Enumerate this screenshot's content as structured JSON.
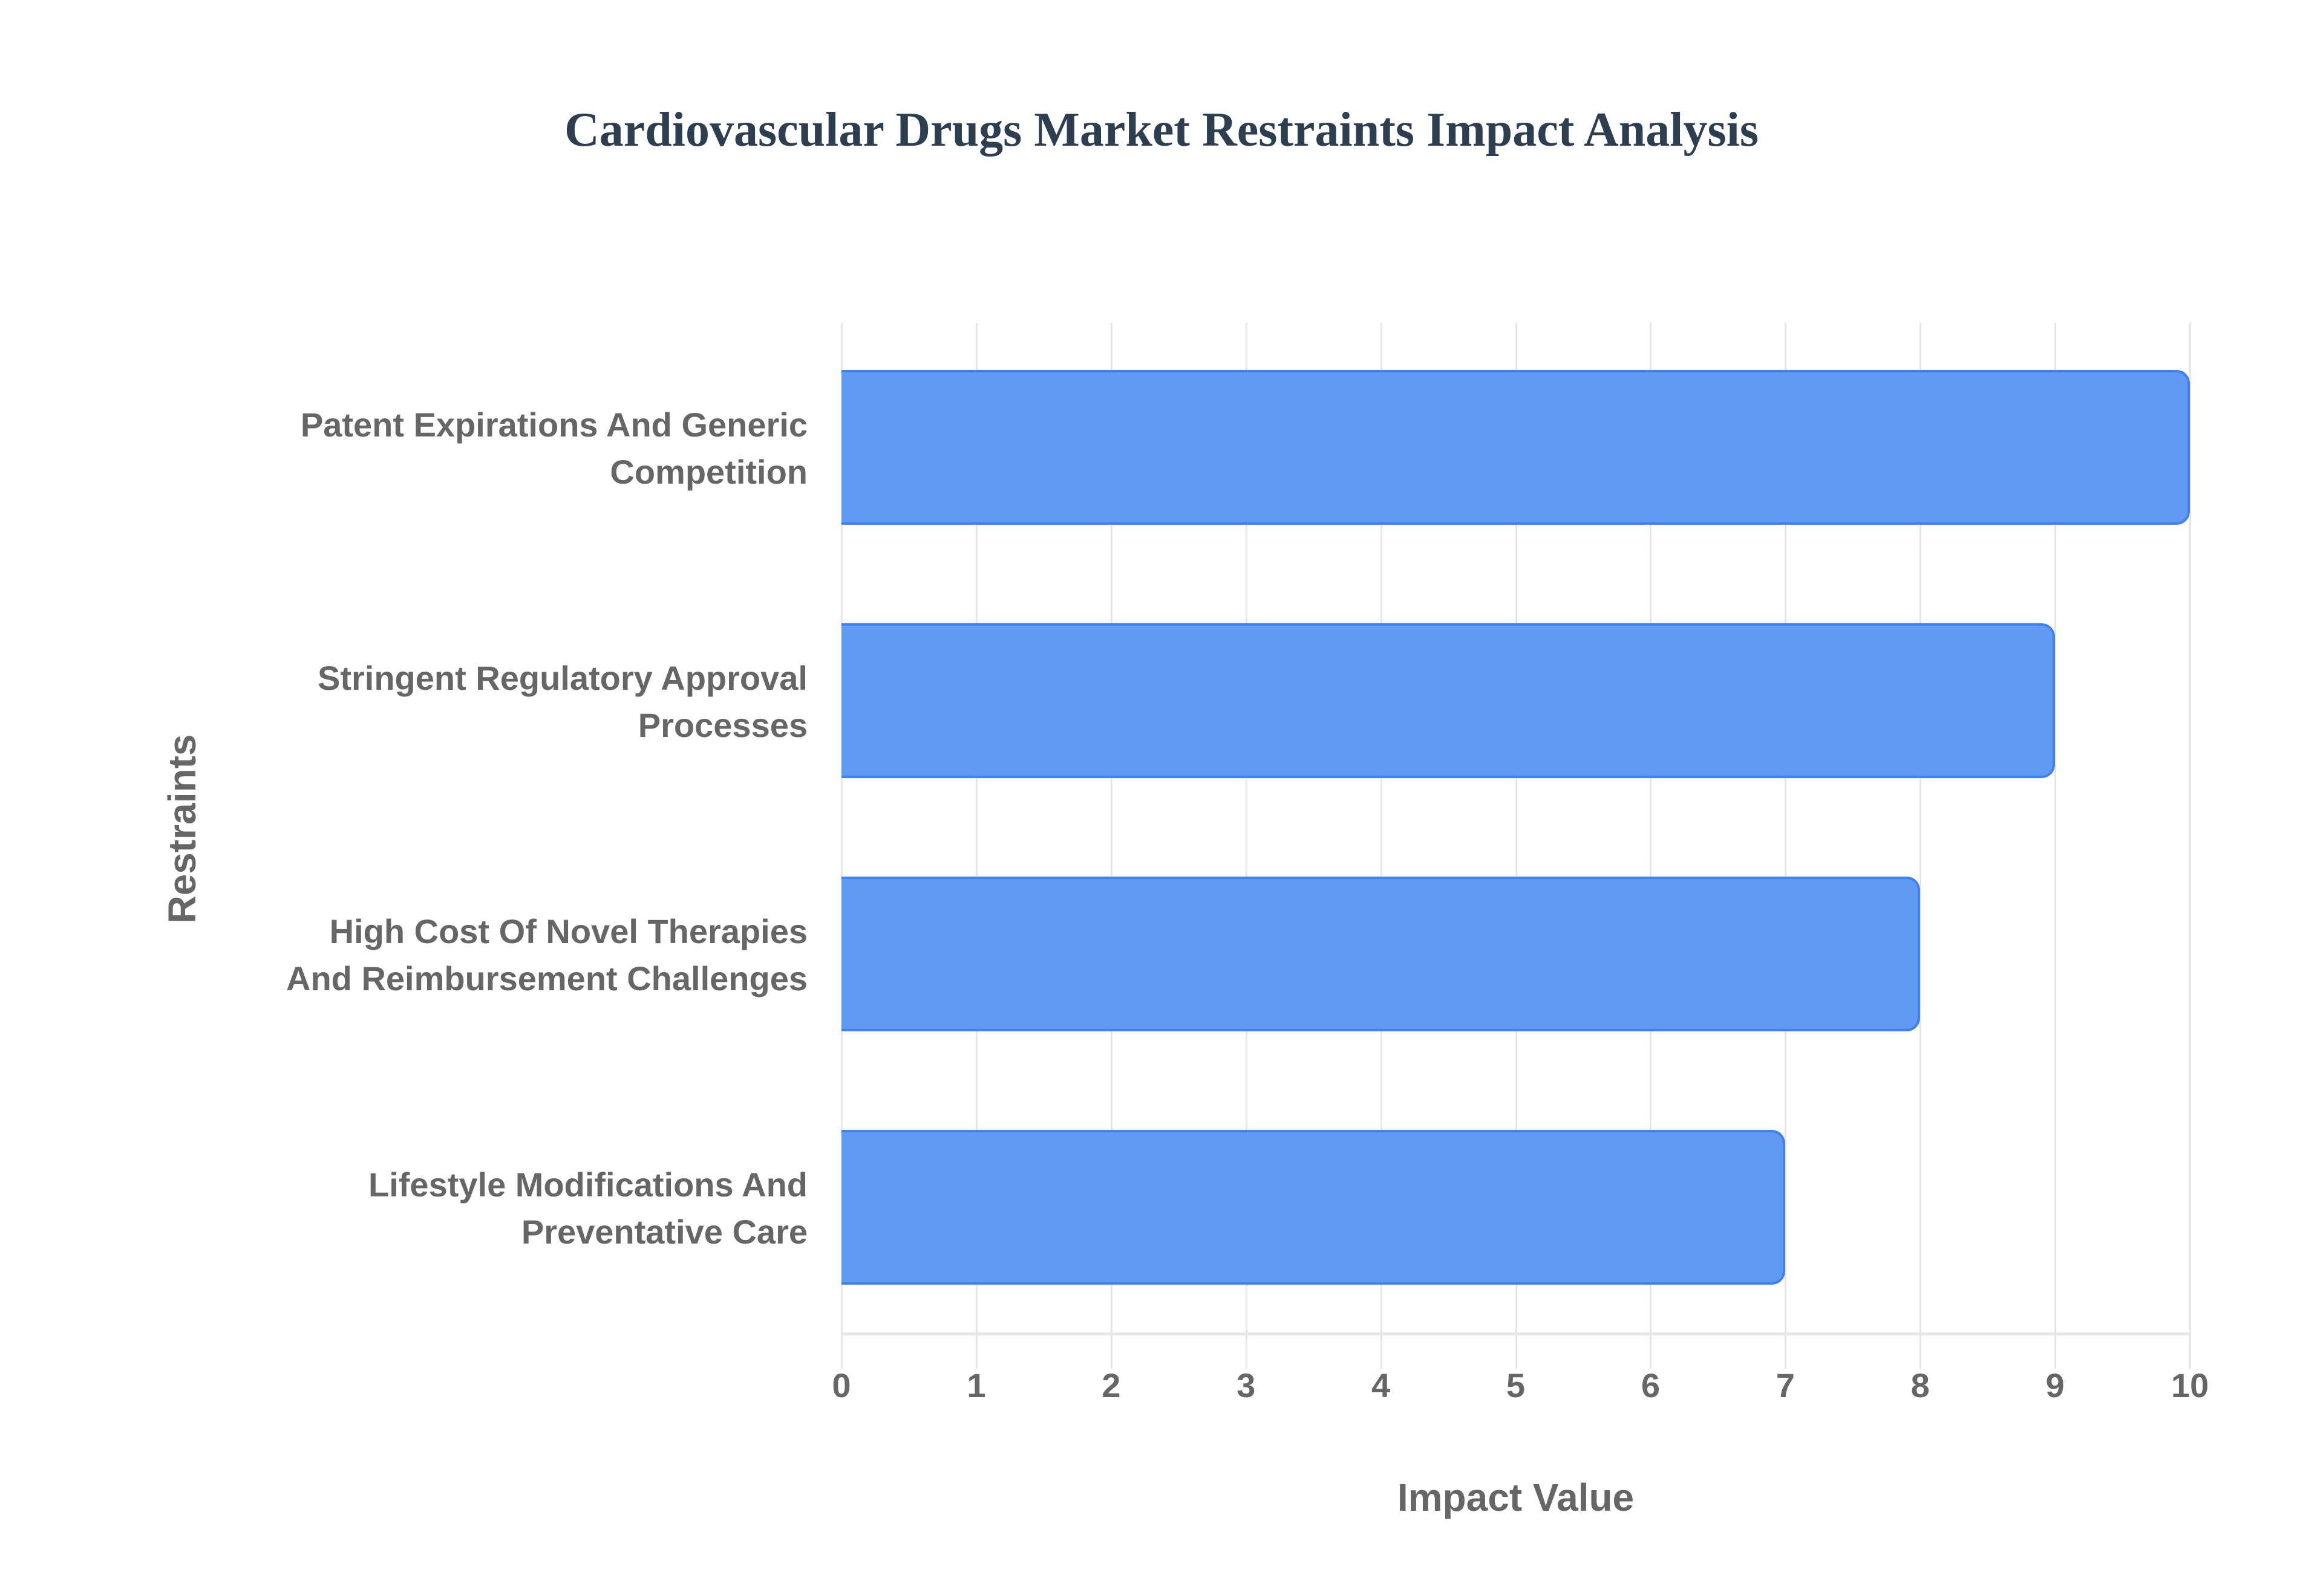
{
  "chart_data": {
    "type": "bar",
    "orientation": "horizontal",
    "title": "Cardiovascular Drugs Market Restraints Impact Analysis",
    "xlabel": "Impact Value",
    "ylabel": "Restraints",
    "xlim": [
      0,
      10
    ],
    "xticks": [
      "0",
      "1",
      "2",
      "3",
      "4",
      "5",
      "6",
      "7",
      "8",
      "9",
      "10"
    ],
    "grid": true,
    "legend": null,
    "categories": [
      "Patent Expirations And Generic Competition",
      "Stringent Regulatory Approval Processes",
      "High Cost Of Novel Therapies And Reimbursement Challenges",
      "Lifestyle Modifications And Preventative Care"
    ],
    "category_lines": [
      [
        "Patent Expirations And Generic",
        "Competition"
      ],
      [
        "Stringent Regulatory Approval",
        "Processes"
      ],
      [
        "High Cost Of Novel Therapies",
        "And Reimbursement Challenges"
      ],
      [
        "Lifestyle Modifications And",
        "Preventative Care"
      ]
    ],
    "values": [
      10,
      9,
      8,
      7
    ],
    "colors": {
      "bar_fill": "#6199f4",
      "bar_border": "#3b82f6",
      "title": "#2c3e50",
      "text": "#666666"
    }
  }
}
